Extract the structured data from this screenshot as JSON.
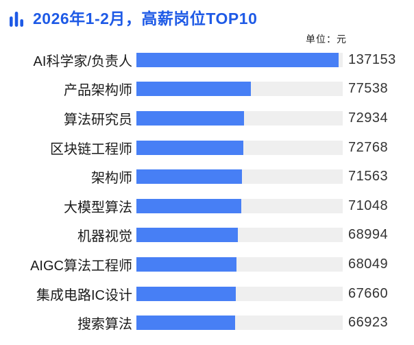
{
  "header": {
    "title": "2026年1-2月，高薪岗位TOP10",
    "icon": "bar-chart-icon"
  },
  "unit_label": "单位：元",
  "colors": {
    "title_blue": "#1E5AE6",
    "bar_blue": "#477FF5",
    "track_gray": "#EFEFEF",
    "label_dark": "#1B1B1B",
    "value_gray": "#333333"
  },
  "chart_data": {
    "type": "bar",
    "orientation": "horizontal",
    "title": "2026年1-2月，高薪岗位TOP10",
    "unit": "元",
    "categories": [
      "AI科学家/负责人",
      "产品架构师",
      "算法研究员",
      "区块链工程师",
      "架构师",
      "大模型算法",
      "机器视觉",
      "AIGC算法工程师",
      "集成电路IC设计",
      "搜索算法"
    ],
    "values": [
      137153,
      77538,
      72934,
      72768,
      71563,
      71048,
      68994,
      68049,
      67660,
      66923
    ],
    "xlim": [
      0,
      140000
    ],
    "grid": false,
    "value_labels": "right",
    "legend": false
  }
}
